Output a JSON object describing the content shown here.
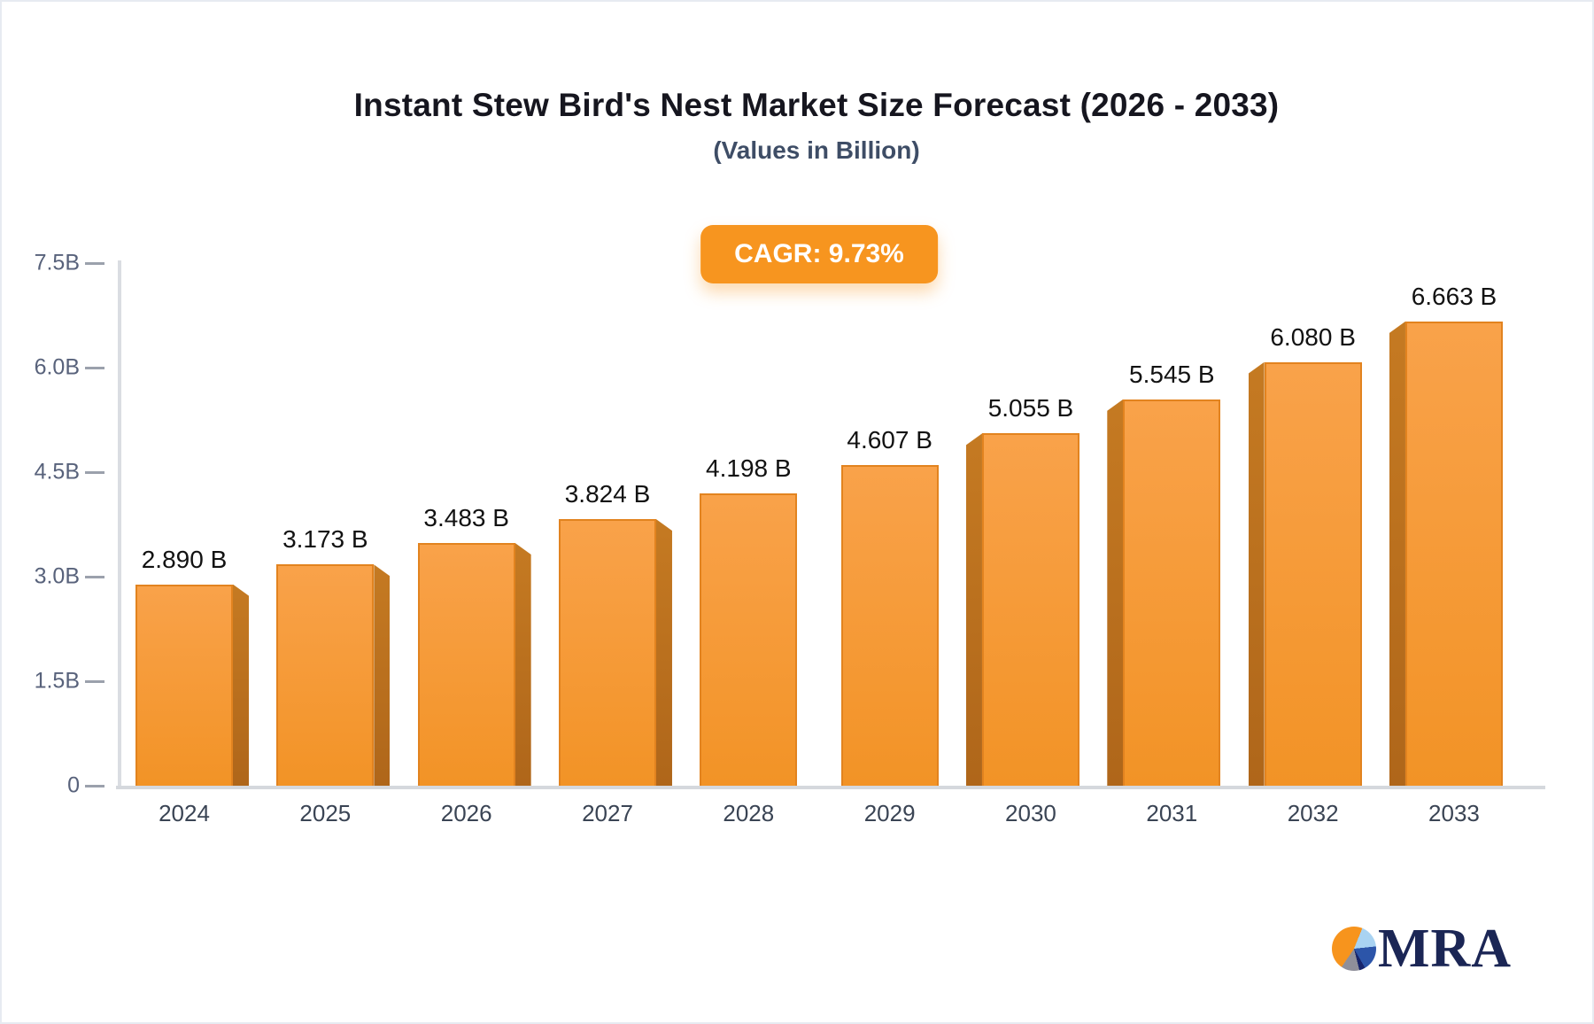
{
  "header": {
    "title": "Instant Stew Bird's Nest Market Size Forecast (2026 - 2033)",
    "subtitle": "(Values in Billion)",
    "cagr_badge": "CAGR: 9.73%"
  },
  "chart_data": {
    "type": "bar",
    "title": "Instant Stew Bird's Nest Market Size Forecast (2026 - 2033)",
    "subtitle": "(Values in Billion)",
    "annotation": "CAGR: 9.73%",
    "categories": [
      "2024",
      "2025",
      "2026",
      "2027",
      "2028",
      "2029",
      "2030",
      "2031",
      "2032",
      "2033"
    ],
    "values": [
      2.89,
      3.173,
      3.483,
      3.824,
      4.198,
      4.607,
      5.055,
      5.545,
      6.08,
      6.663
    ],
    "value_labels": [
      "2.890 B",
      "3.173 B",
      "3.483 B",
      "3.824 B",
      "4.198 B",
      "4.607 B",
      "5.055 B",
      "5.545 B",
      "6.080 B",
      "6.663 B"
    ],
    "xlabel": "",
    "ylabel": "",
    "ylim": [
      0,
      7.5
    ],
    "grid": false,
    "legend": false,
    "y_axis": {
      "max": 7.5,
      "ticks": [
        {
          "label": "0",
          "value": 0
        },
        {
          "label": "1.5B",
          "value": 1.5
        },
        {
          "label": "3.0B",
          "value": 3.0
        },
        {
          "label": "4.5B",
          "value": 4.5
        },
        {
          "label": "6.0B",
          "value": 6.0
        },
        {
          "label": "7.5B",
          "value": 7.5
        }
      ]
    },
    "colors": {
      "bar_gradient_top": "#f9a24a",
      "bar_gradient_bottom": "#f29326",
      "bar_border": "#e2831f",
      "bar_side_top": "#c57a22",
      "bar_side_bottom": "#af661a",
      "badge_background": "#f7951f",
      "badge_text": "#ffffff",
      "axis_line": "#d5d8dd",
      "tick_text": "#58627b",
      "year_text": "#3a4454",
      "value_text": "#121212",
      "title_text": "#16161f",
      "subtitle_text": "#3e4d66"
    }
  },
  "footer": {
    "logo_text": "MRA"
  }
}
